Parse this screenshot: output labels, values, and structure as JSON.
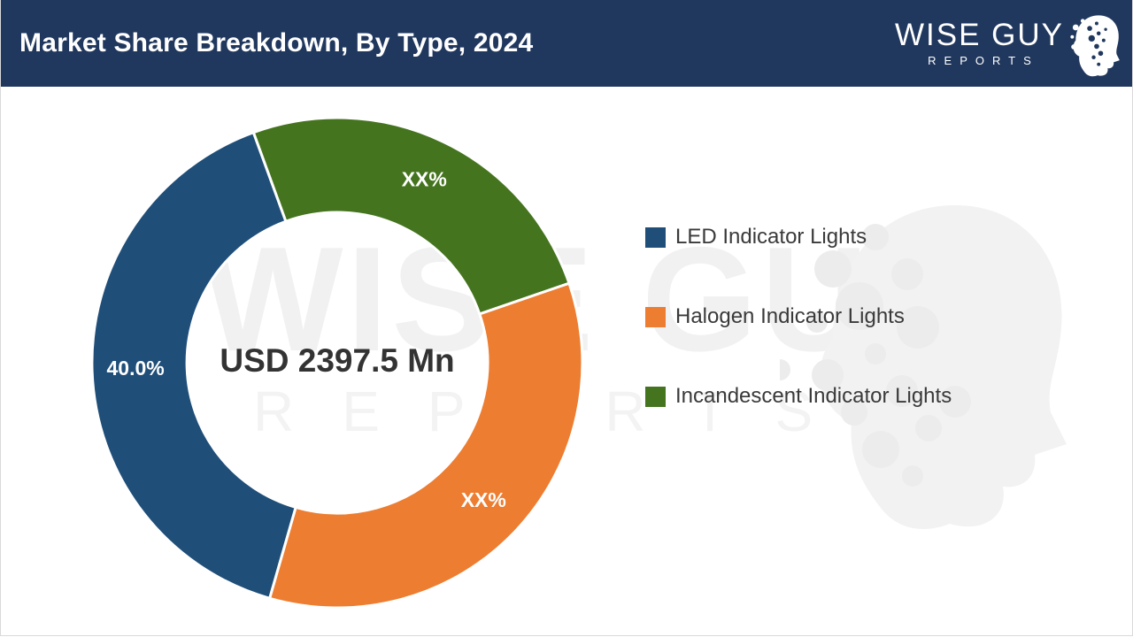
{
  "header": {
    "title": "Market Share Breakdown, By Type, 2024",
    "background_color": "#21385E",
    "logo": {
      "line1": "WISE GUY",
      "line2": "REPORTS"
    }
  },
  "watermark": {
    "line1": "WISE GUY",
    "line2": "REPORTS"
  },
  "chart_data": {
    "type": "donut",
    "title": "Market Share Breakdown, By Type, 2024",
    "center_label": "USD 2397.5 Mn",
    "start_angle_deg": -20,
    "legend_position": "right",
    "segments": [
      {
        "name": "Incandescent Indicator Lights",
        "value_pct": 25.3,
        "display_label": "XX%",
        "color": "#45741F"
      },
      {
        "name": "Halogen Indicator Lights",
        "value_pct": 34.7,
        "display_label": "XX%",
        "color": "#ED7D31"
      },
      {
        "name": "LED Indicator Lights",
        "value_pct": 40.0,
        "display_label": "40.0%",
        "color": "#1F4E79"
      }
    ],
    "legend": [
      {
        "label": "LED Indicator Lights",
        "color": "#1F4E79"
      },
      {
        "label": "Halogen Indicator Lights",
        "color": "#ED7D31"
      },
      {
        "label": "Incandescent Indicator Lights",
        "color": "#45741F"
      }
    ]
  }
}
